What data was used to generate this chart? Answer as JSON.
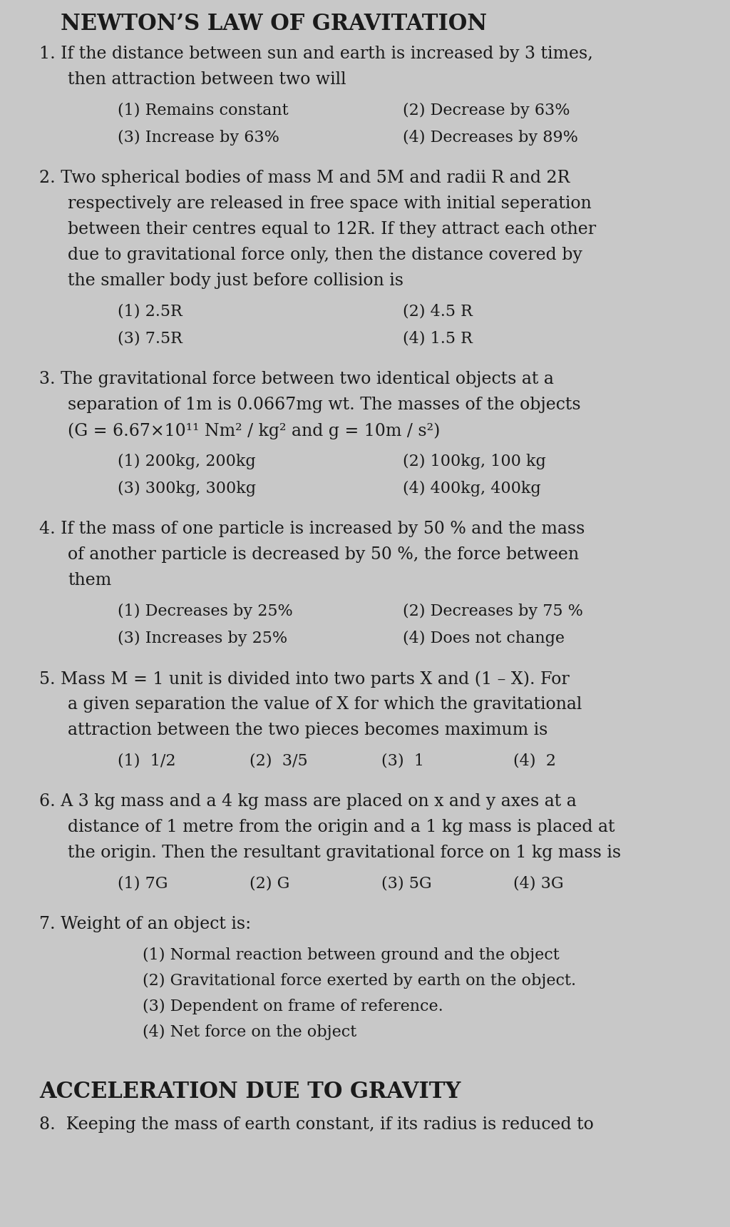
{
  "bg_color": "#c8c8c8",
  "page_color": "#e6e6e6",
  "text_color": "#1a1a1a",
  "title": "NEWTON’S LAW OF GRAVITATION",
  "title_fs": 22,
  "body_fs": 17,
  "opt_fs": 16,
  "questions": [
    {
      "num": "1.",
      "lines": [
        "If the distance between sun and earth is increased by 3 times,",
        "then attraction between two will"
      ],
      "opts_2col": [
        [
          "(1) Remains constant",
          "(2) Decrease by 63%"
        ],
        [
          "(3) Increase by 63%",
          "(4) Decreases by 89%"
        ]
      ]
    },
    {
      "num": "2.",
      "lines": [
        "Two spherical bodies of mass M and 5M and radii R and 2R",
        "respectively are released in free space with initial seperation",
        "between their centres equal to 12R. If they attract each other",
        "due to gravitational force only, then the distance covered by",
        "the smaller body just before collision is"
      ],
      "opts_2col": [
        [
          "(1) 2.5R",
          "(2) 4.5 R"
        ],
        [
          "(3) 7.5R",
          "(4) 1.5 R"
        ]
      ]
    },
    {
      "num": "3.",
      "lines": [
        "The gravitational force between two identical objects at a",
        "separation of 1m is 0.0667mg wt. The masses of the objects",
        "(G = 6.67×10¹¹ Nm² / kg² and g = 10m / s²)"
      ],
      "opts_2col": [
        [
          "(1) 200kg, 200kg",
          "(2) 100kg, 100 kg"
        ],
        [
          "(3) 300kg, 300kg",
          "(4) 400kg, 400kg"
        ]
      ]
    },
    {
      "num": "4.",
      "lines": [
        "If the mass of one particle is increased by 50 % and the mass",
        "of another particle is decreased by 50 %, the force between",
        "them"
      ],
      "opts_2col": [
        [
          "(1) Decreases by 25%",
          "(2) Decreases by 75 %"
        ],
        [
          "(3) Increases by 25%",
          "(4) Does not change"
        ]
      ]
    },
    {
      "num": "5.",
      "lines": [
        "Mass M = 1 unit is divided into two parts X and (1 – X). For",
        "a given separation the value of X for which the gravitational",
        "attraction between the two pieces becomes maximum is"
      ],
      "opts_inline": [
        "(1)  1/2",
        "(2)  3/5",
        "(3)  1",
        "(4)  2"
      ]
    },
    {
      "num": "6.",
      "lines": [
        "A 3 kg mass and a 4 kg mass are placed on x and y axes at a",
        "distance of 1 metre from the origin and a 1 kg mass is placed at",
        "the origin. Then the resultant gravitational force on 1 kg mass is"
      ],
      "opts_inline": [
        "(1) 7G",
        "(2) G",
        "(3) 5G",
        "(4) 3G"
      ]
    },
    {
      "num": "7.",
      "lines": [
        "Weight of an object is:"
      ],
      "sub_opts": [
        "(1) Normal reaction between ground and the object",
        "(2) Gravitational force exerted by earth on the object.",
        "(3) Dependent on frame of reference.",
        "(4) Net force on the object"
      ]
    }
  ],
  "section2_title": "ACCELERATION DUE TO GRAVITY",
  "q8": "8.  Keeping the mass of earth constant, if its radius is reduced to"
}
